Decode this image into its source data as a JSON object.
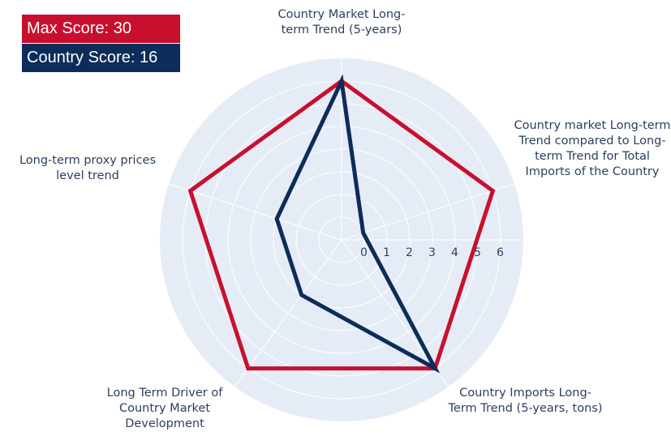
{
  "chart_data": {
    "type": "radar",
    "categories": [
      "Country Market Long-term Trend (5-years)",
      "Country market Long-term Trend compared to Long-term Trend for Total Imports of the Country",
      "Country Imports Long-Term Trend (5-years, tons)",
      "Long Term Driver of Country Market Development",
      "Long-term proxy prices level trend"
    ],
    "series": [
      {
        "name": "Max Score: 30",
        "color": "#c8102e",
        "values": [
          6,
          6,
          6,
          6,
          6
        ]
      },
      {
        "name": "Country Score: 16",
        "color": "#0c2c5a",
        "values": [
          6,
          0,
          6,
          2,
          2
        ]
      }
    ],
    "rlim": [
      -1,
      7
    ],
    "rticks": [
      0,
      1,
      2,
      3,
      4,
      5,
      6
    ],
    "grid": true
  }
}
